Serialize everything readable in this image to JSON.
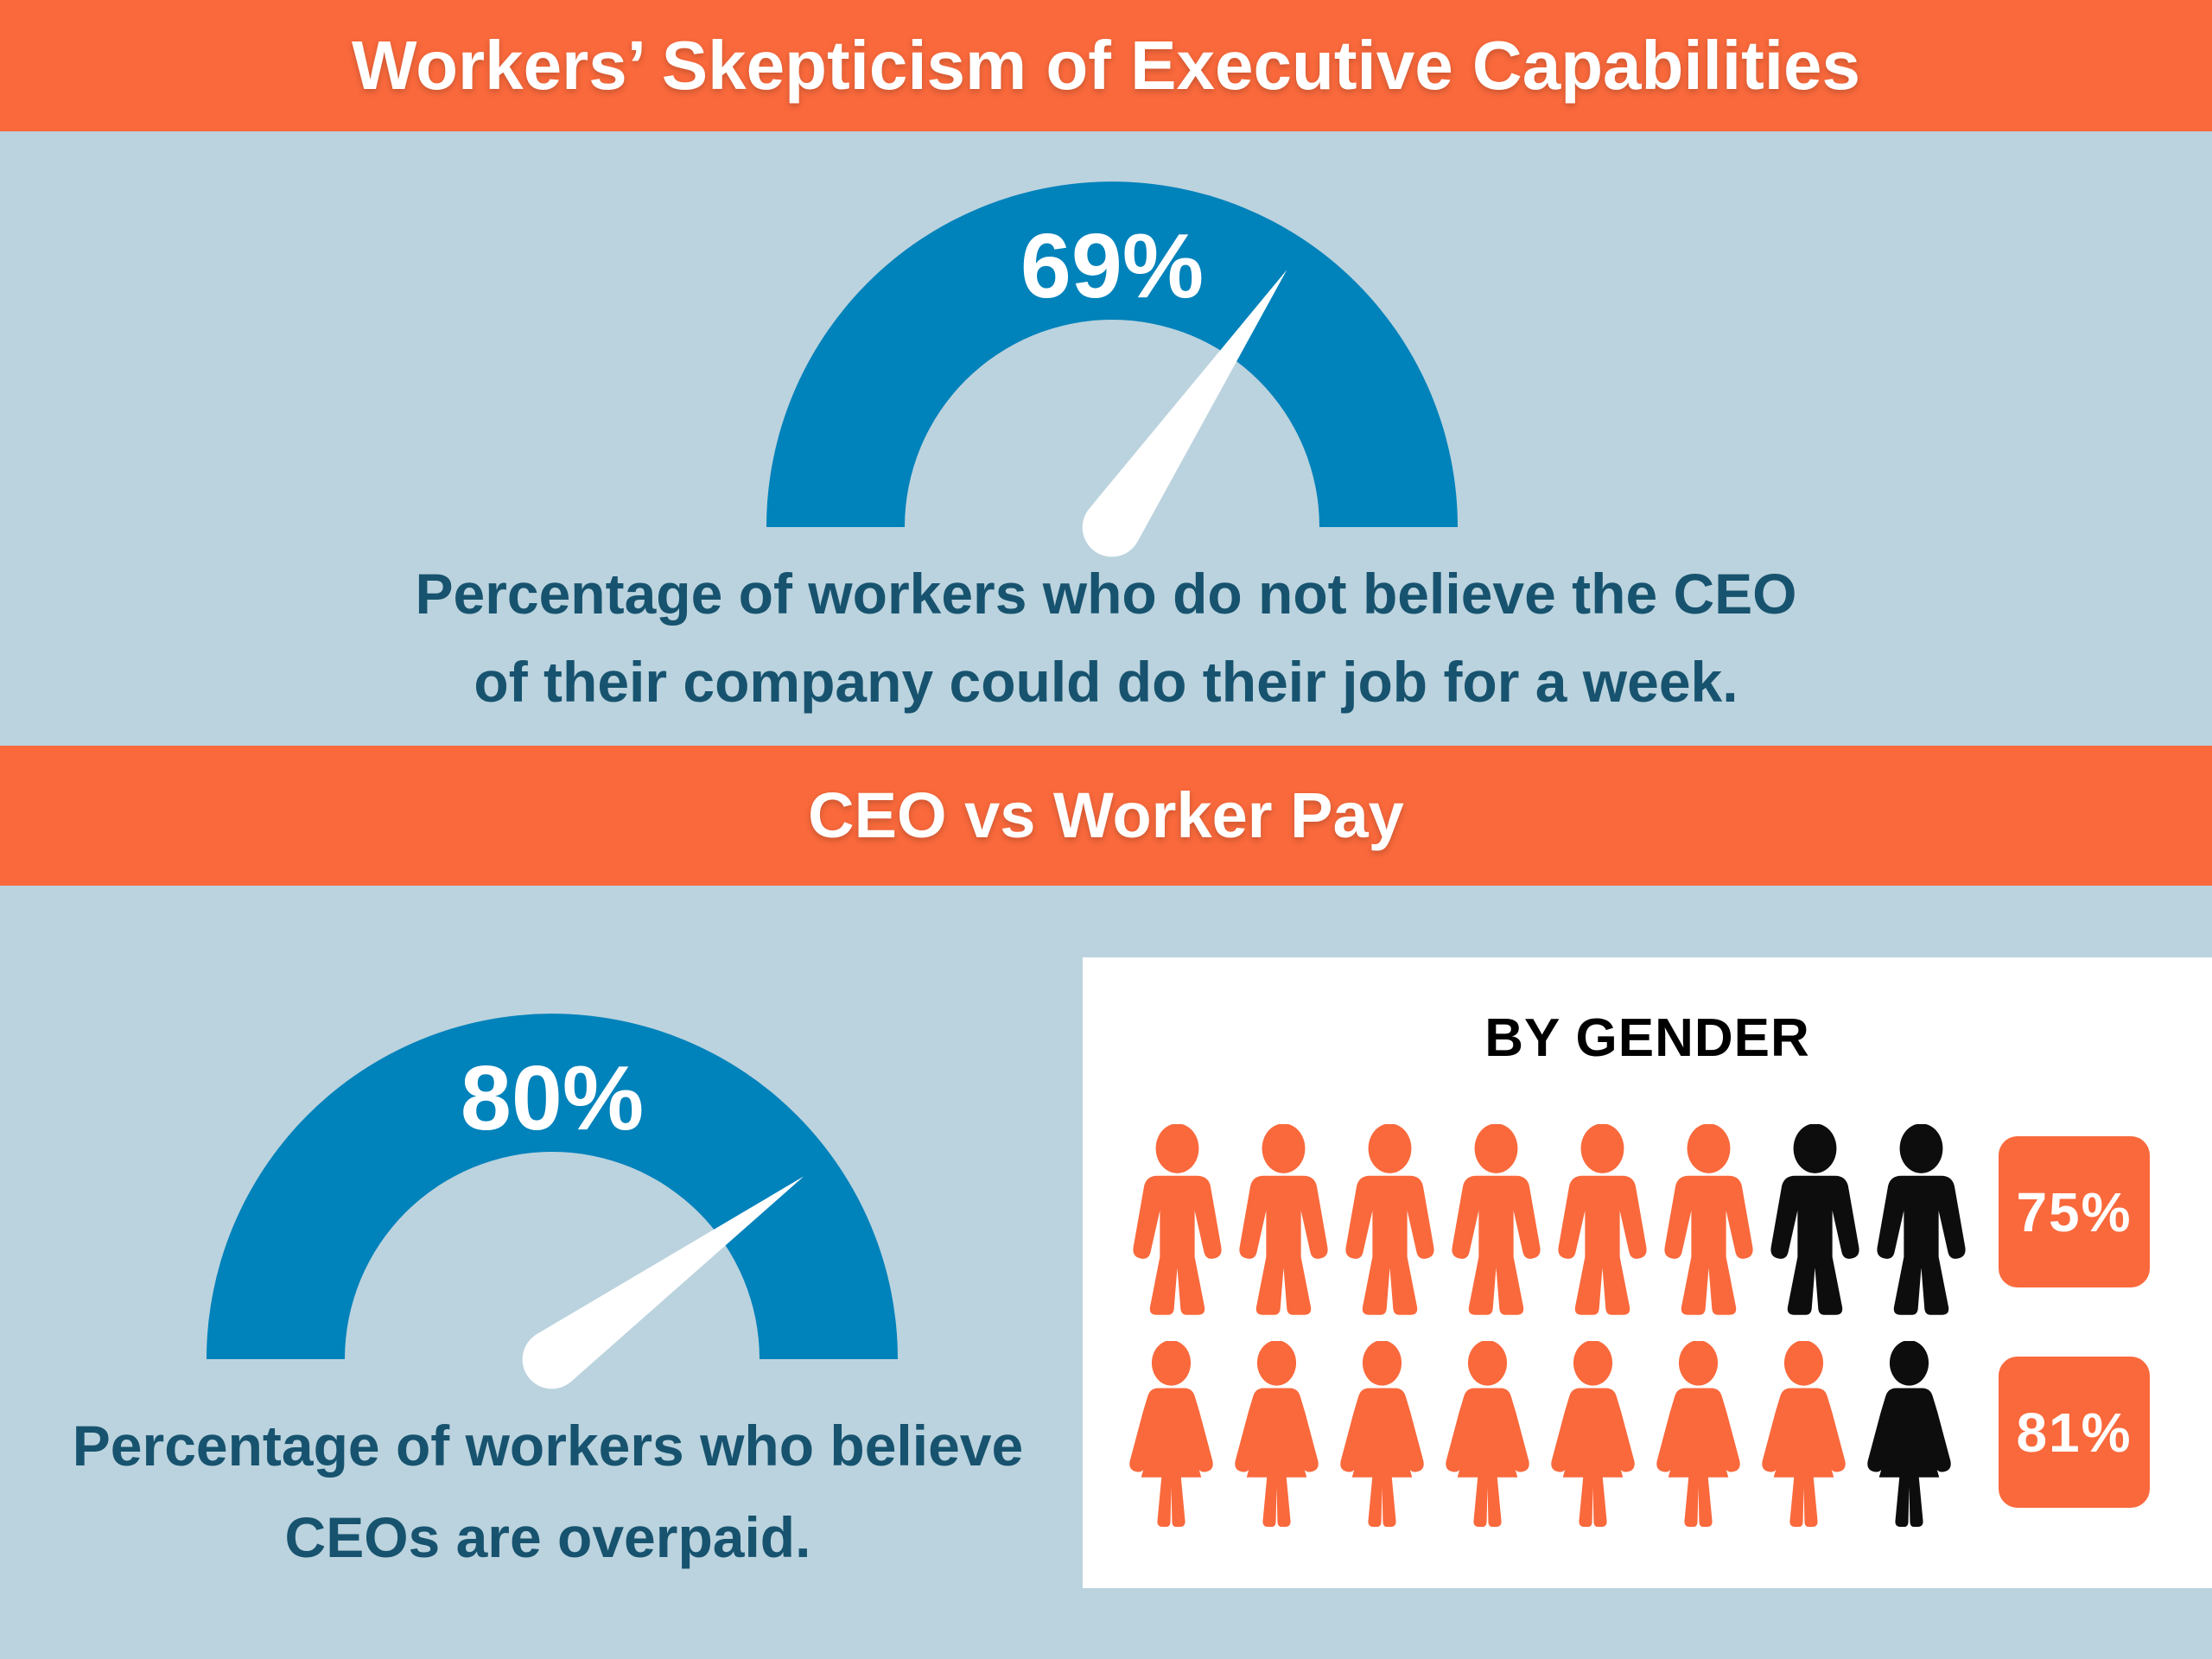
{
  "palette": {
    "orange": "#F9693C",
    "light_blue": "#BBD3DE",
    "gauge_blue": "#0082BB",
    "teal": "#17536F",
    "ink": "#0D0D0D",
    "white": "#FFFFFF"
  },
  "banner1": {
    "title": "Workers’ Skepticism of Executive Capabilities"
  },
  "section1": {
    "gauge": {
      "value": 69,
      "label": "69%"
    },
    "caption_line1": "Percentage of workers who do not believe the CEO",
    "caption_line2": "of their company could do their job for a week."
  },
  "banner2": {
    "title": "CEO vs Worker Pay"
  },
  "section2": {
    "gauge": {
      "value": 80,
      "label": "80%"
    },
    "caption_line1": "Percentage of workers who believe",
    "caption_line2": "CEOs are overpaid.",
    "by_gender": {
      "title": "BY GENDER",
      "rows": [
        {
          "gender": "male",
          "total": 8,
          "highlighted": 6,
          "value_label": "75%"
        },
        {
          "gender": "female",
          "total": 8,
          "highlighted": 7,
          "value_label": "81%"
        }
      ]
    }
  },
  "chart_data": [
    {
      "type": "gauge",
      "title": "Workers’ Skepticism of Executive Capabilities",
      "value": 69,
      "unit": "%",
      "range": [
        0,
        100
      ],
      "annotation": "Percentage of workers who do not believe the CEO of their company could do their job for a week."
    },
    {
      "type": "gauge",
      "title": "CEO vs Worker Pay",
      "value": 80,
      "unit": "%",
      "range": [
        0,
        100
      ],
      "annotation": "Percentage of workers who believe CEOs are overpaid."
    },
    {
      "type": "pictograph",
      "title": "BY GENDER",
      "categories": [
        "Men",
        "Women"
      ],
      "values": [
        75,
        81
      ],
      "unit": "%",
      "icons_total": [
        8,
        8
      ],
      "icons_highlighted": [
        6,
        7
      ],
      "legend_position": "right"
    }
  ]
}
